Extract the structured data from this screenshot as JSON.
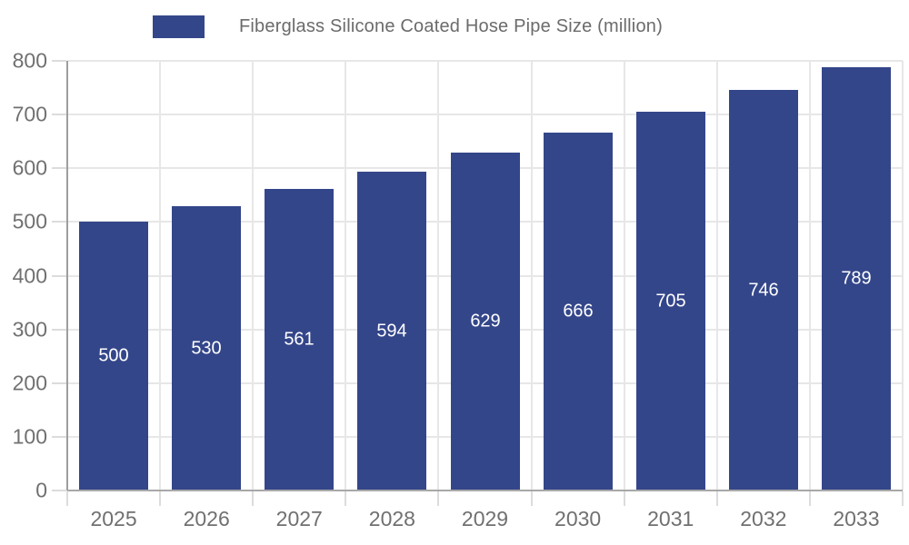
{
  "chart_data": {
    "type": "bar",
    "title": "Fiberglass Silicone Coated Hose Pipe Size (million)",
    "categories": [
      "2025",
      "2026",
      "2027",
      "2028",
      "2029",
      "2030",
      "2031",
      "2032",
      "2033"
    ],
    "values": [
      500,
      530,
      561,
      594,
      629,
      666,
      705,
      746,
      789
    ],
    "xlabel": "",
    "ylabel": "",
    "ylim": [
      0,
      800
    ],
    "ytick_interval": 100,
    "ytick_labels": [
      "0",
      "100",
      "200",
      "300",
      "400",
      "500",
      "600",
      "700",
      "800"
    ],
    "grid": true,
    "legend_position": "top",
    "value_labels_shown": true,
    "value_label_position": "center"
  },
  "legend": {
    "label": "Fiberglass Silicone Coated Hose Pipe Size (million)"
  },
  "colors": {
    "bar": "#34468A",
    "value_label": "#ffffff",
    "grid": "#e7e7e7",
    "axis": "#9e9e9e",
    "tick_label": "#707070",
    "legend_text": "#6b6b6b",
    "background": "#ffffff"
  }
}
